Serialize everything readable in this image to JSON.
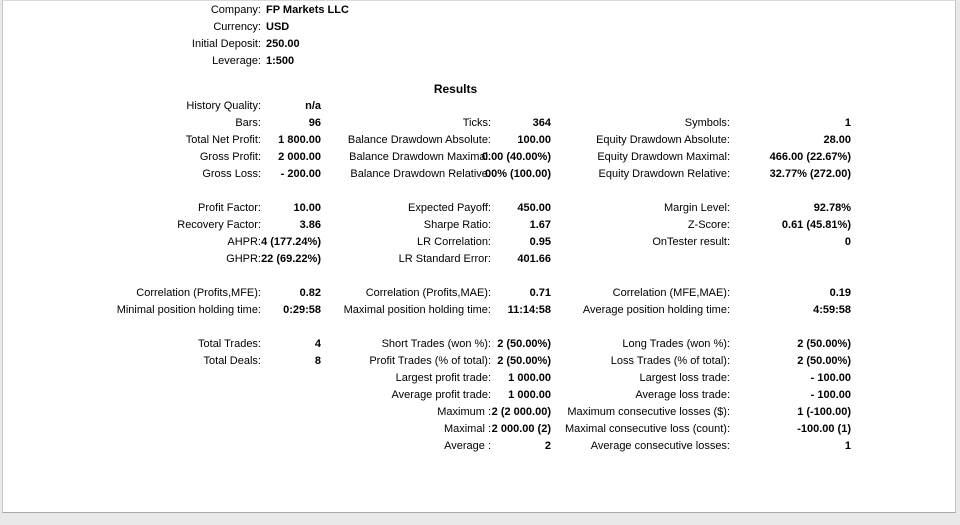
{
  "header": {
    "rows": [
      {
        "label": "Company:",
        "value": "FP Markets LLC"
      },
      {
        "label": "Currency:",
        "value": "USD"
      },
      {
        "label": "Initial Deposit:",
        "value": "250.00"
      },
      {
        "label": "Leverage:",
        "value": "1:500"
      }
    ]
  },
  "results": {
    "title": "Results",
    "blocks": [
      {
        "rows": [
          [
            "History Quality:",
            "n/a",
            "",
            "",
            "",
            ""
          ],
          [
            "Bars:",
            "96",
            "Ticks:",
            "364",
            "Symbols:",
            "1"
          ],
          [
            "Total Net Profit:",
            "1 800.00",
            "Balance Drawdown Absolute:",
            "100.00",
            "Equity Drawdown Absolute:",
            "28.00"
          ],
          [
            "Gross Profit:",
            "2 000.00",
            "Balance Drawdown Maximal:",
            "0.00 (40.00%)",
            "Equity Drawdown Maximal:",
            "466.00 (22.67%)"
          ],
          [
            "Gross Loss:",
            "- 200.00",
            "Balance Drawdown Relative:",
            "00% (100.00)",
            "Equity Drawdown Relative:",
            "32.77% (272.00)"
          ]
        ]
      },
      {
        "rows": [
          [
            "Profit Factor:",
            "10.00",
            "Expected Payoff:",
            "450.00",
            "Margin Level:",
            "92.78%"
          ],
          [
            "Recovery Factor:",
            "3.86",
            "Sharpe Ratio:",
            "1.67",
            "Z-Score:",
            "0.61 (45.81%)"
          ],
          [
            "AHPR:",
            "4 (177.24%)",
            "LR Correlation:",
            "0.95",
            "OnTester result:",
            "0"
          ],
          [
            "GHPR:",
            "22 (69.22%)",
            "LR Standard Error:",
            "401.66",
            "",
            ""
          ]
        ]
      },
      {
        "rows": [
          [
            "Correlation (Profits,MFE):",
            "0.82",
            "Correlation (Profits,MAE):",
            "0.71",
            "Correlation (MFE,MAE):",
            "0.19"
          ],
          [
            "Minimal position holding time:",
            "0:29:58",
            "Maximal position holding time:",
            "11:14:58",
            "Average position holding time:",
            "4:59:58"
          ]
        ]
      },
      {
        "rows": [
          [
            "Total Trades:",
            "4",
            "Short Trades (won %):",
            "2 (50.00%)",
            "Long Trades (won %):",
            "2 (50.00%)"
          ],
          [
            "Total Deals:",
            "8",
            "Profit Trades (% of total):",
            "2 (50.00%)",
            "Loss Trades (% of total):",
            "2 (50.00%)"
          ],
          [
            "",
            "",
            "Largest profit trade:",
            "1 000.00",
            "Largest loss trade:",
            "- 100.00"
          ],
          [
            "",
            "",
            "Average profit trade:",
            "1 000.00",
            "Average loss trade:",
            "- 100.00"
          ],
          [
            "",
            "",
            "Maximum :",
            "2 (2 000.00)",
            "Maximum consecutive losses ($):",
            "1 (-100.00)"
          ],
          [
            "",
            "",
            "Maximal :",
            "2 000.00 (2)",
            "Maximal consecutive loss (count):",
            "-100.00 (1)"
          ],
          [
            "",
            "",
            "Average :",
            "2",
            "Average consecutive losses:",
            "1"
          ]
        ]
      }
    ]
  },
  "colors": {
    "page_bg": "#ffffff",
    "outer_bg": "#e9e9e9",
    "page_border": "#c6c6c6",
    "text": "#000000"
  }
}
